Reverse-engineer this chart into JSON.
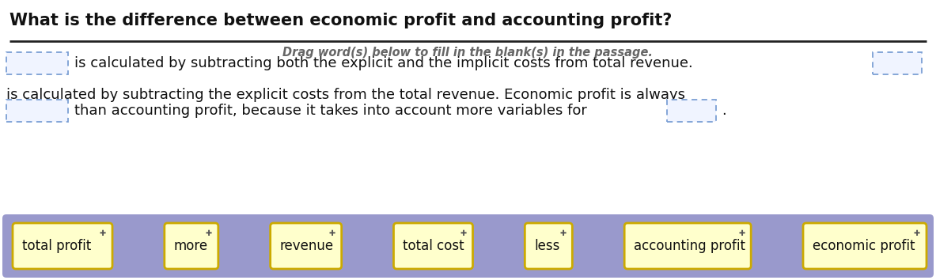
{
  "title": "What is the difference between economic profit and accounting profit?",
  "subtitle": "Drag word(s) below to fill in the blank(s) in the passage.",
  "line1_text": "is calculated by subtracting both the explicit and the implicit costs from total revenue.",
  "line2_text": "is calculated by subtracting the explicit costs from the total revenue. Economic profit is always",
  "line3_text": "than accounting profit, because it takes into account more variables for",
  "line3_end": ".",
  "blank_border": "#7b9fd4",
  "blank_face": "#f0f4ff",
  "bg_color": "#ffffff",
  "bar_bg": "#9999cc",
  "word_bg": "#ffffcc",
  "word_border": "#ccaa00",
  "words": [
    "total profit",
    "more",
    "revenue",
    "total cost",
    "less",
    "accounting profit",
    "economic profit"
  ],
  "superscript": "✚",
  "title_fontsize": 15,
  "subtitle_fontsize": 10.5,
  "body_fontsize": 13,
  "word_fontsize": 12
}
